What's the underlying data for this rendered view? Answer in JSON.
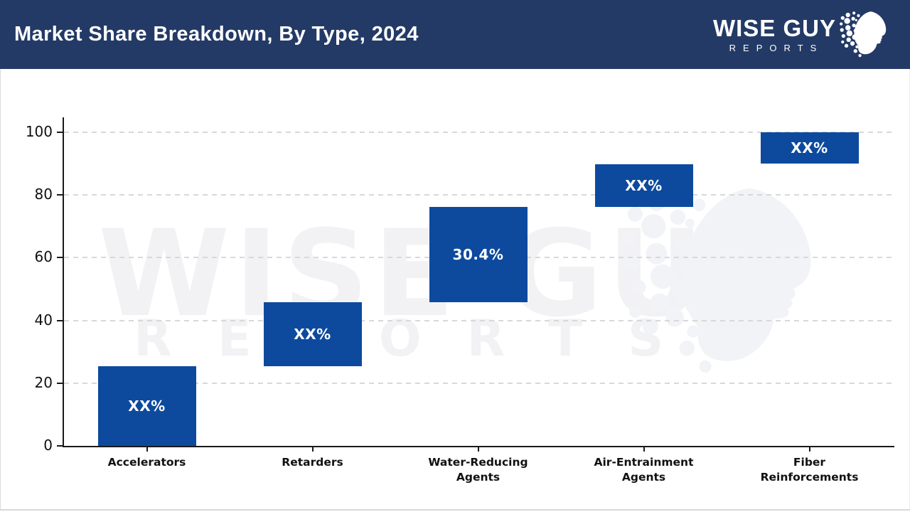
{
  "header": {
    "title": "Market Share Breakdown, By Type, 2024",
    "bg_color": "#233a66",
    "logo": {
      "name": "WISE GUY",
      "sub": "REPORTS"
    }
  },
  "watermark": {
    "line1": "WISE GUY",
    "line2": "REPORTS"
  },
  "chart_data": {
    "type": "bar",
    "variant": "floating-waterfall",
    "title": "Market Share Breakdown, By Type, 2024",
    "xlabel": "",
    "ylabel": "",
    "ylim": [
      0,
      100
    ],
    "yticks": [
      0,
      20,
      40,
      60,
      80,
      100
    ],
    "grid": {
      "horizontal": true,
      "style": "dashed",
      "color": "#d8d8d8"
    },
    "legend": null,
    "bar_color": "#0d4a9e",
    "bar_label_color": "#ffffff",
    "categories": [
      "Accelerators",
      "Retarders",
      "Water-Reducing\nAgents",
      "Air-Entrainment\nAgents",
      "Fiber\nReinforcements"
    ],
    "bars": [
      {
        "category": "Accelerators",
        "start": 0,
        "end": 25.5,
        "label": "XX%"
      },
      {
        "category": "Retarders",
        "start": 25.5,
        "end": 45.7,
        "label": "XX%"
      },
      {
        "category": "Water-Reducing Agents",
        "start": 45.7,
        "end": 76.1,
        "label": "30.4%",
        "value": 30.4
      },
      {
        "category": "Air-Entrainment Agents",
        "start": 76.3,
        "end": 89.9,
        "label": "XX%"
      },
      {
        "category": "Fiber Reinforcements",
        "start": 90.1,
        "end": 100,
        "label": "XX%"
      }
    ]
  }
}
